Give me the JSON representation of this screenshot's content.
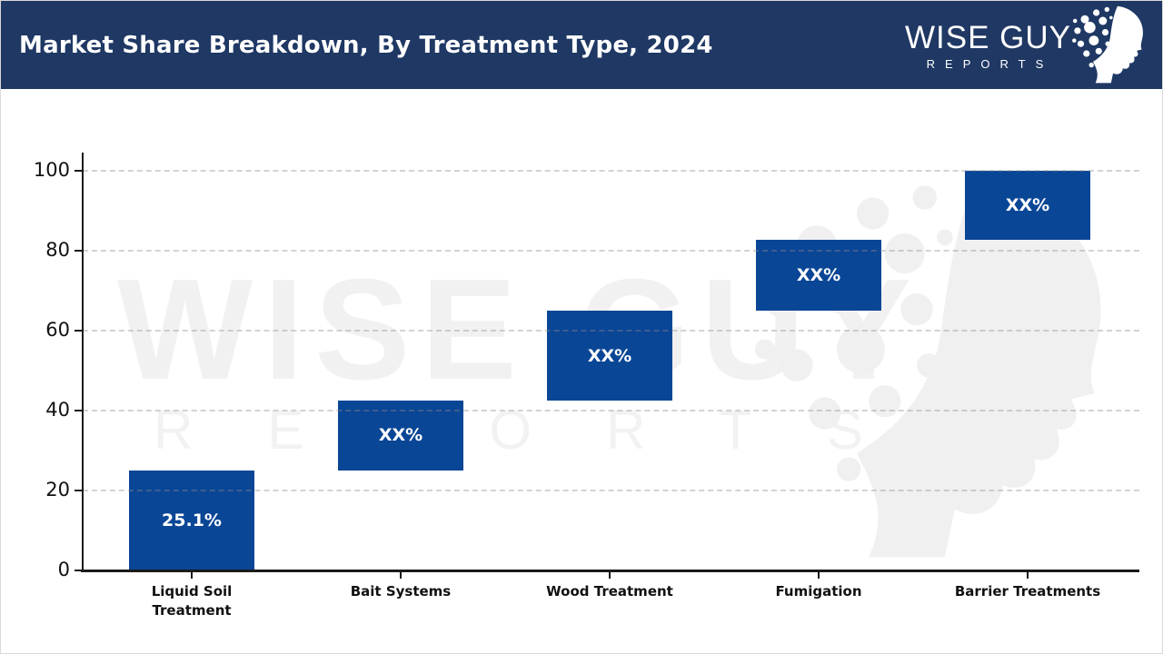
{
  "header": {
    "title": "Market Share Breakdown, By Treatment Type, 2024",
    "bg_color": "#1F3864",
    "logo": {
      "line1": "WISE GUY",
      "line2": "REPORTS"
    }
  },
  "watermark": {
    "line1": "WISE GUY",
    "line2": "REPORTS"
  },
  "chart_data": {
    "type": "bar",
    "subtype": "waterfall",
    "title": "Market Share Breakdown, By Treatment Type, 2024",
    "categories": [
      "Liquid Soil Treatment",
      "Bait Systems",
      "Wood Treatment",
      "Fumigation",
      "Barrier Treatments"
    ],
    "x_display_labels": [
      "Liquid Soil\nTreatment",
      "Bait Systems",
      "Wood Treatment",
      "Fumigation",
      "Barrier Treatments"
    ],
    "segments": [
      {
        "category": "Liquid Soil Treatment",
        "start": 0,
        "end": 25.1,
        "label": "25.1%"
      },
      {
        "category": "Bait Systems",
        "start": 25.1,
        "end": 42.5,
        "label": "XX%"
      },
      {
        "category": "Wood Treatment",
        "start": 42.5,
        "end": 65.0,
        "label": "XX%"
      },
      {
        "category": "Fumigation",
        "start": 65.0,
        "end": 82.7,
        "label": "XX%"
      },
      {
        "category": "Barrier Treatments",
        "start": 82.7,
        "end": 100.0,
        "label": "XX%"
      }
    ],
    "xlabel": "",
    "ylabel": "",
    "yticks": [
      0,
      20,
      40,
      60,
      80,
      100
    ],
    "ylim": [
      0,
      105
    ],
    "grid": {
      "horizontal": true,
      "style": "dashed",
      "color": "#d9d9d9",
      "drawn_over_bars": true
    },
    "legend": null,
    "bar_color": "#0A4696",
    "bar_label_color": "#ffffff"
  }
}
